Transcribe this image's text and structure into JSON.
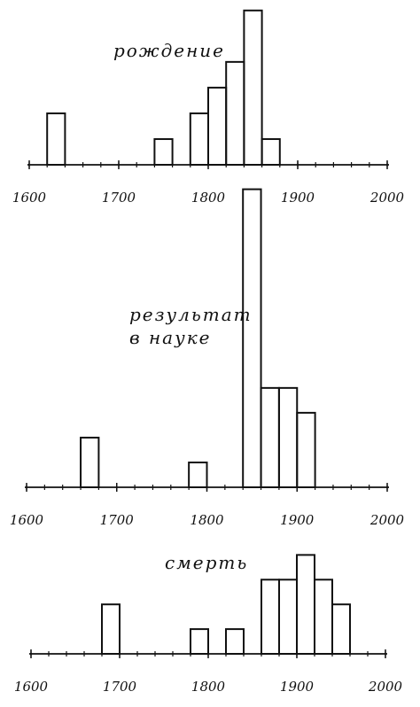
{
  "chart_data": [
    {
      "type": "histogram",
      "title": "рождение",
      "bins": [
        1600,
        1620,
        1640,
        1660,
        1680,
        1700,
        1720,
        1740,
        1760,
        1780,
        1800,
        1820,
        1840,
        1860,
        1880,
        1900,
        1920,
        1940,
        1960,
        1980,
        2000
      ],
      "values": [
        0,
        2,
        0,
        0,
        0,
        0,
        0,
        1,
        0,
        2,
        3,
        4,
        6,
        1,
        0,
        0,
        0,
        0,
        0,
        0
      ],
      "xlim": [
        1600,
        2000
      ],
      "xticks": [
        1600,
        1700,
        1800,
        1900,
        2000
      ],
      "ylim": [
        0,
        6.2
      ],
      "color": "#111111"
    },
    {
      "type": "histogram",
      "title": "результат в науке",
      "bins": [
        1600,
        1620,
        1640,
        1660,
        1680,
        1700,
        1720,
        1740,
        1760,
        1780,
        1800,
        1820,
        1840,
        1860,
        1880,
        1900,
        1920,
        1940,
        1960,
        1980,
        2000
      ],
      "values": [
        0,
        0,
        0,
        2,
        0,
        0,
        0,
        0,
        0,
        1,
        0,
        0,
        12,
        4,
        4,
        3,
        0,
        0,
        0,
        0
      ],
      "xlim": [
        1600,
        2000
      ],
      "xticks": [
        1600,
        1700,
        1800,
        1900,
        2000
      ],
      "ylim": [
        0,
        12.2
      ],
      "color": "#111111"
    },
    {
      "type": "histogram",
      "title": "смерть",
      "bins": [
        1600,
        1620,
        1640,
        1660,
        1680,
        1700,
        1720,
        1740,
        1760,
        1780,
        1800,
        1820,
        1840,
        1860,
        1880,
        1900,
        1920,
        1940,
        1960,
        1980,
        2000
      ],
      "values": [
        0,
        0,
        0,
        0,
        2,
        0,
        0,
        0,
        0,
        1,
        0,
        1,
        0,
        3,
        3,
        4,
        3,
        2,
        0,
        0
      ],
      "xlim": [
        1600,
        2000
      ],
      "xticks": [
        1600,
        1700,
        1800,
        1900,
        2000
      ],
      "ylim": [
        0,
        4.3
      ],
      "color": "#111111"
    }
  ]
}
